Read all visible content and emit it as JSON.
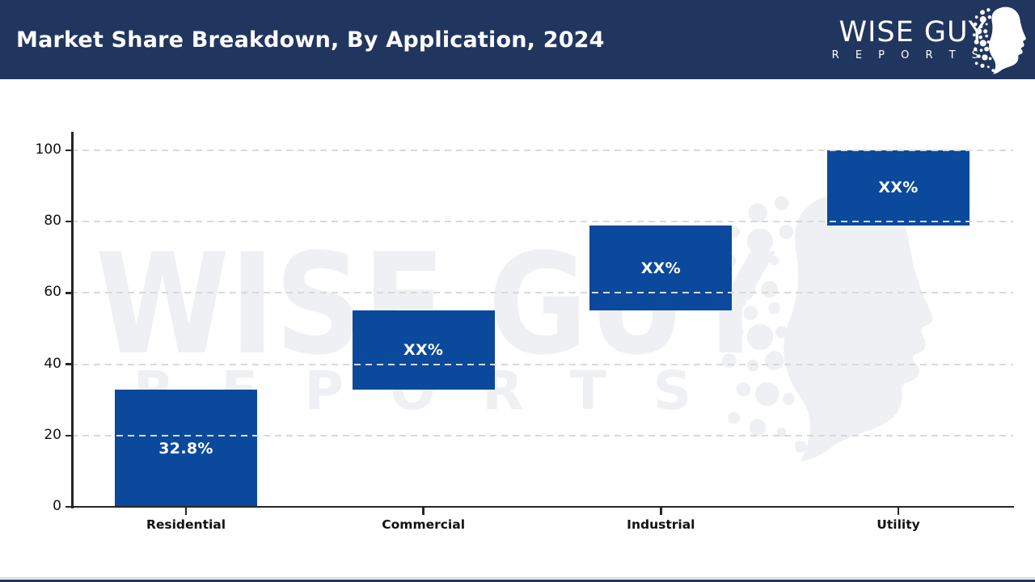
{
  "header": {
    "title": "Market Share Breakdown, By Application, 2024"
  },
  "logo": {
    "brand": "WISE GUY",
    "sub": "R E P O R T S",
    "head_icon": "dotted-face-profile"
  },
  "watermark": {
    "brand": "WISE GUY",
    "sub": "R E P O R T S"
  },
  "chart_data": {
    "type": "bar",
    "subtype": "waterfall",
    "title": "Market Share Breakdown, By Application, 2024",
    "categories": [
      "Residential",
      "Commercial",
      "Industrial",
      "Utility"
    ],
    "segments": [
      {
        "category": "Residential",
        "start": 0,
        "end": 32.8,
        "label": "32.8%"
      },
      {
        "category": "Commercial",
        "start": 32.8,
        "end": 55,
        "label": "XX%"
      },
      {
        "category": "Industrial",
        "start": 55,
        "end": 79,
        "label": "XX%"
      },
      {
        "category": "Utility",
        "start": 79,
        "end": 100,
        "label": "XX%"
      }
    ],
    "values_masked": true,
    "xlabel": "",
    "ylabel": "",
    "y_ticks": [
      0,
      20,
      40,
      60,
      80,
      100
    ],
    "ylim": [
      0,
      100
    ],
    "grid": "dashed horizontal, drawn over bars",
    "legend": "none",
    "bar_color": "#0a499c",
    "bar_label_color": "#ffffff"
  },
  "colors": {
    "header_bg": "#21365f",
    "bar": "#0a499c",
    "gridline": "#d9d9d9",
    "axis": "#262626",
    "tick_text": "#111111",
    "watermark": "#eff0f3",
    "footer_line": "#d9d9d9",
    "footer_bar": "#21365f"
  }
}
